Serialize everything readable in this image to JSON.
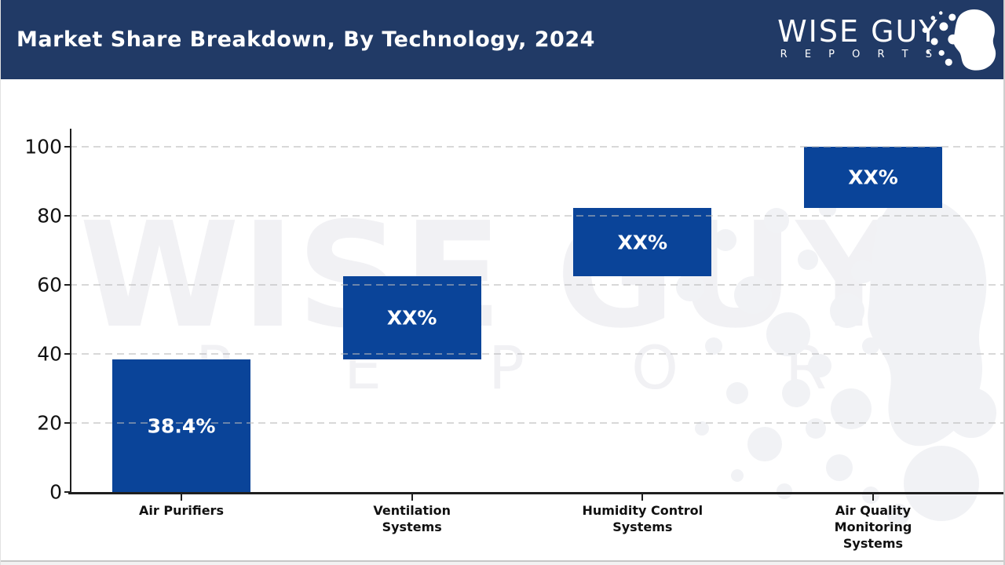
{
  "header": {
    "title": "Market Share Breakdown, By Technology, 2024"
  },
  "logo": {
    "line1": "WISE GUY",
    "line2": "R E P O R T S"
  },
  "watermark": {
    "line1": "WISE GUY",
    "line2": "R E P O R T S"
  },
  "colors": {
    "header_bg": "#213a66",
    "bar": "#0a4499",
    "axis": "#1f1f1f",
    "grid": "#d9d9d9",
    "bar_label": "#ffffff"
  },
  "chart_data": {
    "type": "bar",
    "subtype": "waterfall",
    "title": "Market Share Breakdown, By Technology, 2024",
    "categories": [
      "Air Purifiers",
      "Ventilation\nSystems",
      "Humidity Control\nSystems",
      "Air Quality\nMonitoring Systems"
    ],
    "segments": [
      {
        "category": "Air Purifiers",
        "start": 0,
        "end": 38.4,
        "label": "38.4%"
      },
      {
        "category": "Ventilation Systems",
        "start": 38.4,
        "end": 62.5,
        "label": "XX%"
      },
      {
        "category": "Humidity Control Systems",
        "start": 62.5,
        "end": 82.2,
        "label": "XX%"
      },
      {
        "category": "Air Quality Monitoring Systems",
        "start": 82.2,
        "end": 100,
        "label": "XX%"
      }
    ],
    "ylabel": "",
    "xlabel": "",
    "ylim": [
      0,
      100
    ],
    "yticks": [
      0,
      20,
      40,
      60,
      80,
      100
    ],
    "grid": "horizontal-dashed",
    "legend": "none"
  }
}
